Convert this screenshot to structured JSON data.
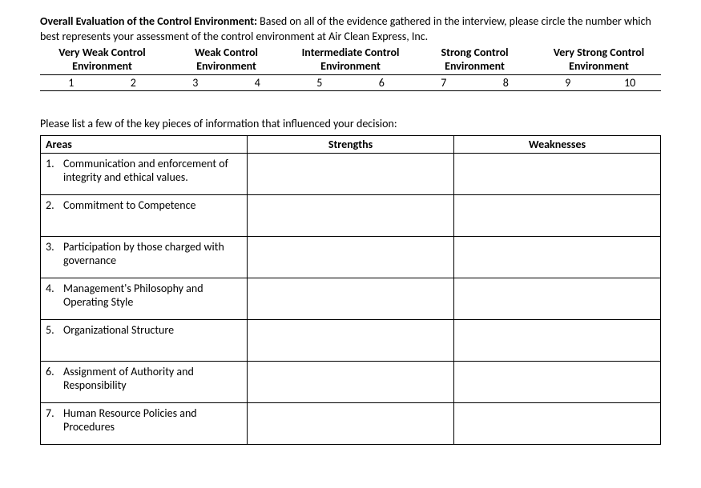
{
  "heading": {
    "bold": "Overall Evaluation of the Control Environment:",
    "rest": "Based on all of the evidence gathered in the interview, please circle the number which best represents your assessment of the control environment at Air Clean Express, Inc."
  },
  "scale": {
    "labels": [
      {
        "l1": "Very Weak Control",
        "l2": "Environment"
      },
      {
        "l1": "Weak Control",
        "l2": "Environment"
      },
      {
        "l1": "Intermediate Control",
        "l2": "Environment"
      },
      {
        "l1": "Strong Control",
        "l2": "Environment"
      },
      {
        "l1": "Very Strong Control",
        "l2": "Environment"
      }
    ],
    "numbers": [
      "1",
      "2",
      "3",
      "4",
      "5",
      "6",
      "7",
      "8",
      "9",
      "10"
    ]
  },
  "prompt": "Please list a few of the key pieces of information that influenced your decision:",
  "table": {
    "headers": {
      "areas": "Areas",
      "strengths": "Strengths",
      "weaknesses": "Weaknesses"
    },
    "rows": [
      {
        "n": "1.",
        "label": "Communication and enforcement of integrity and ethical values.",
        "strengths": "",
        "weaknesses": ""
      },
      {
        "n": "2.",
        "label": "Commitment to Competence",
        "strengths": "",
        "weaknesses": ""
      },
      {
        "n": "3.",
        "label": "Participation by those charged with governance",
        "strengths": "",
        "weaknesses": ""
      },
      {
        "n": "4.",
        "label": "Management's Philosophy and Operating Style",
        "strengths": "",
        "weaknesses": ""
      },
      {
        "n": "5.",
        "label": "Organizational Structure",
        "strengths": "",
        "weaknesses": ""
      },
      {
        "n": "6.",
        "label": "Assignment of Authority and Responsibility",
        "strengths": "",
        "weaknesses": ""
      },
      {
        "n": "7.",
        "label": "Human Resource Policies and Procedures",
        "strengths": "",
        "weaknesses": ""
      }
    ]
  }
}
